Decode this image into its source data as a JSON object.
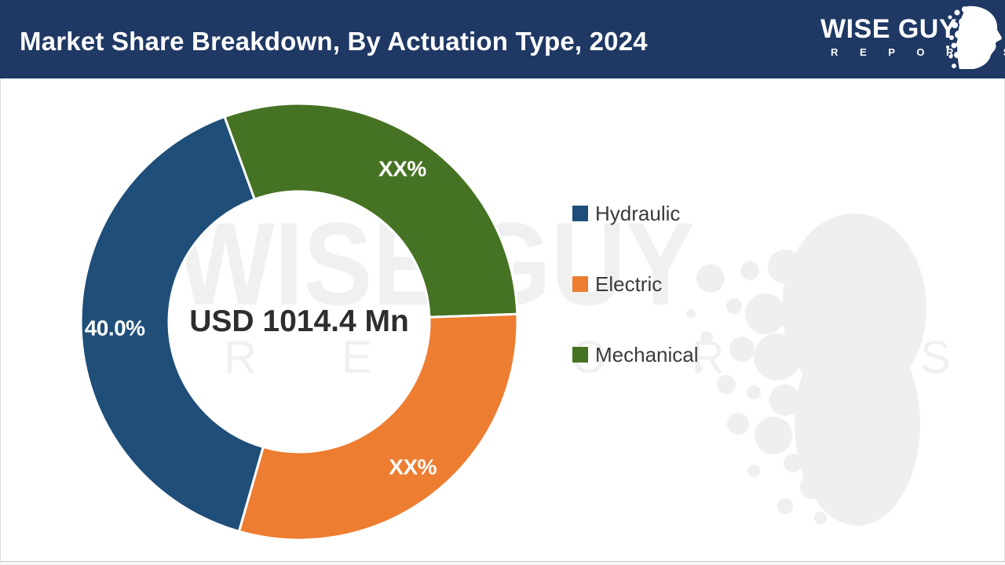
{
  "header": {
    "title": "Market Share Breakdown, By Actuation Type, 2024",
    "background_color": "#1F3864",
    "logo": {
      "brand_top": "WISE GUY",
      "brand_bottom": "R E P O R T S"
    }
  },
  "watermark": {
    "line1": "WISE GUY",
    "line2": "R E P O R T S"
  },
  "chart_data": {
    "type": "donut",
    "center_label": "USD 1014.4 Mn",
    "start_angle_deg": -20,
    "slice_label_color": "#ffffff",
    "separator_color": "#ffffff",
    "segments": [
      {
        "name": "Mechanical",
        "value": 30,
        "label": "XX%",
        "color": "#467323"
      },
      {
        "name": "Electric",
        "value": 30,
        "label": "XX%",
        "color": "#ED7D31"
      },
      {
        "name": "Hydraulic",
        "value": 40,
        "label": "40.0%",
        "color": "#1F4E79"
      }
    ],
    "legend": [
      {
        "label": "Hydraulic",
        "color": "#1F4E79"
      },
      {
        "label": "Electric",
        "color": "#ED7D31"
      },
      {
        "label": "Mechanical",
        "color": "#467323"
      }
    ]
  }
}
